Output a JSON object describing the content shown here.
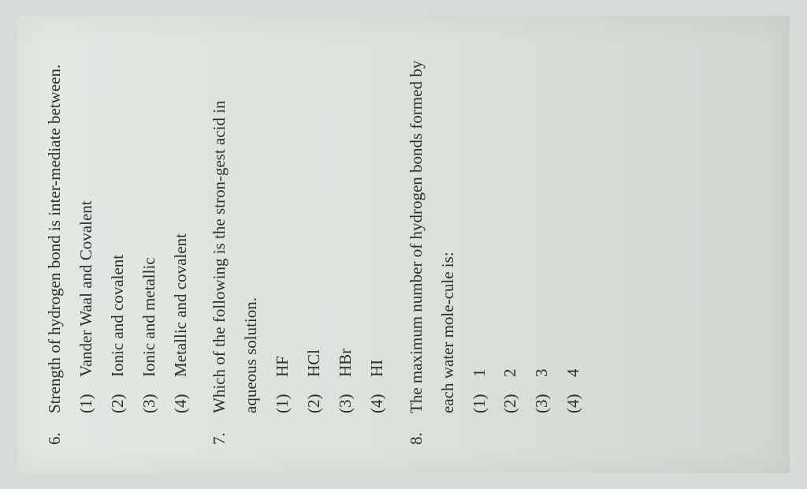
{
  "page": {
    "background_color": "#d8dcd8",
    "paper_gradient": [
      "#e4e8e3",
      "#dde1dc",
      "#d2d6d1"
    ],
    "text_color": "#2a2e2a",
    "font_family": "Georgia, 'Times New Roman', serif",
    "font_size_pt": 16,
    "rotation_deg": -90
  },
  "questions": [
    {
      "number": "6.",
      "stem": "Strength of hydrogen bond is inter-mediate between.",
      "options": [
        {
          "num": "(1)",
          "text": "Vander Waal and Covalent"
        },
        {
          "num": "(2)",
          "text": "Ionic and covalent"
        },
        {
          "num": "(3)",
          "text": "Ionic and metallic"
        },
        {
          "num": "(4)",
          "text": "Metallic and covalent"
        }
      ]
    },
    {
      "number": "7.",
      "stem": "Which of the following is the stron-gest acid in aqueous solution.",
      "options": [
        {
          "num": "(1)",
          "text": "HF"
        },
        {
          "num": "(2)",
          "text": "HCl"
        },
        {
          "num": "(3)",
          "text": "HBr"
        },
        {
          "num": "(4)",
          "text": "HI"
        }
      ]
    },
    {
      "number": "8.",
      "stem": "The maximum number of hydrogen bonds formed by each water mole-cule is:",
      "options": [
        {
          "num": "(1)",
          "text": "1"
        },
        {
          "num": "(2)",
          "text": "2"
        },
        {
          "num": "(3)",
          "text": "3"
        },
        {
          "num": "(4)",
          "text": "4"
        }
      ]
    }
  ]
}
